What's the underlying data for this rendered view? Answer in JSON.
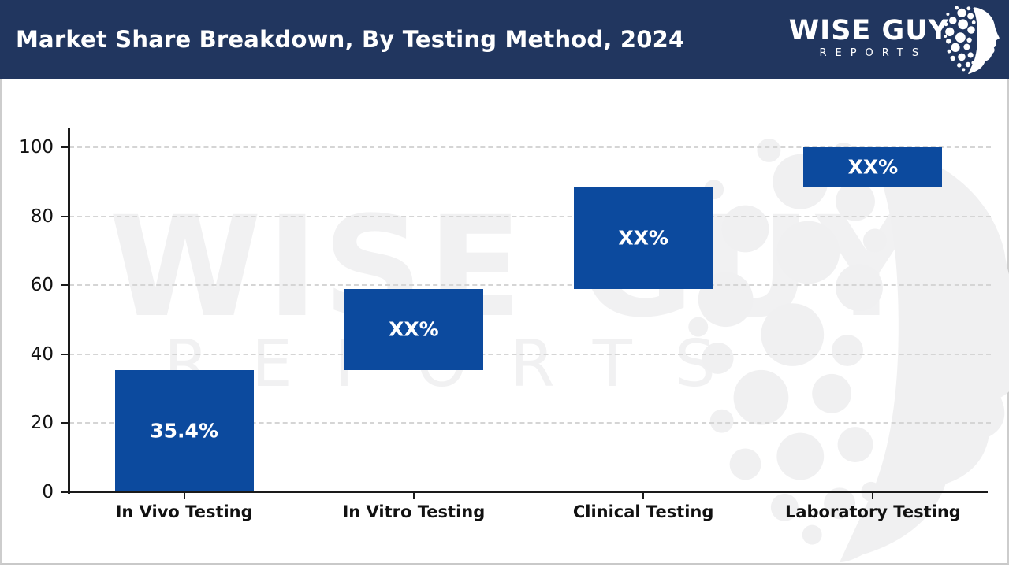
{
  "header": {
    "title": "Market Share Breakdown, By Testing Method, 2024",
    "logo": {
      "name": "WISE GUY",
      "sub": "REPORTS"
    }
  },
  "watermark": {
    "name": "WISE GUY",
    "sub": "REPORTS"
  },
  "colors": {
    "header_bg": "#21365f",
    "bar": "#0c4a9e",
    "axis": "#1a1a1a",
    "gridline": "#d5d5d5",
    "watermark": "#f1f1f2",
    "value_label": "#ffffff"
  },
  "chart_data": {
    "type": "bar",
    "subtype": "waterfall",
    "title": "Market Share Breakdown, By Testing Method, 2024",
    "categories": [
      "In Vivo Testing",
      "In Vitro Testing",
      "Clinical Testing",
      "Laboratory Testing"
    ],
    "bars": [
      {
        "category": "In Vivo Testing",
        "start": 0,
        "end": 35.4,
        "label": "35.4%"
      },
      {
        "category": "In Vitro Testing",
        "start": 35.4,
        "end": 59,
        "label": "XX%"
      },
      {
        "category": "Clinical Testing",
        "start": 59,
        "end": 88.5,
        "label": "XX%"
      },
      {
        "category": "Laboratory Testing",
        "start": 88.5,
        "end": 100,
        "label": "XX%"
      }
    ],
    "xlabel": "",
    "ylabel": "",
    "ylim": [
      0,
      100
    ],
    "yticks": [
      0,
      20,
      40,
      60,
      80,
      100
    ],
    "grid": "horizontal-dashed",
    "legend": "none"
  }
}
